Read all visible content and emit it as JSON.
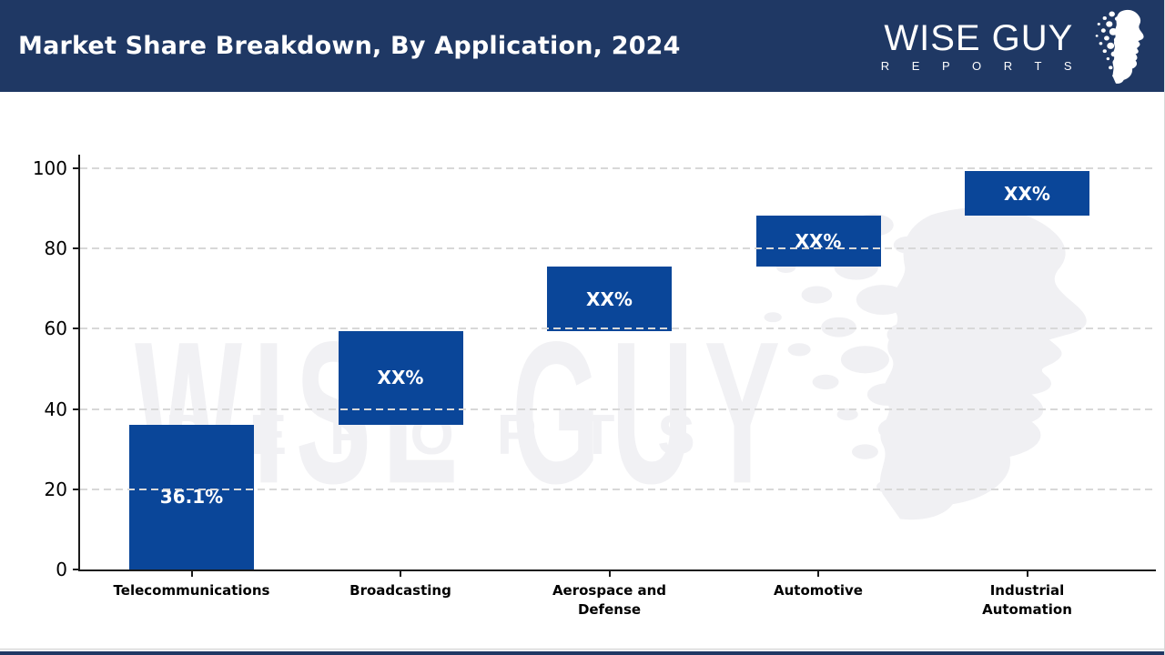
{
  "header": {
    "title": "Market Share Breakdown, By Application, 2024",
    "logo": {
      "line1": "WISE GUY",
      "line2": "R E P O R T S"
    }
  },
  "watermark": {
    "line1": "WISE GUY",
    "line2": "REPORTS"
  },
  "colors": {
    "header_bg": "#1f3864",
    "bar": "#0a4699",
    "gridline": "#d8d8d8",
    "axis": "#1a1a1a",
    "watermark_text": "#f1f1f4",
    "watermark_face": "#f0f0f3",
    "title_text": "#ffffff",
    "footer_bar": "#1f3864"
  },
  "chart_data": {
    "type": "bar",
    "subtype": "waterfall",
    "title": "Market Share Breakdown, By Application, 2024",
    "categories": [
      "Telecommunications",
      "Broadcasting",
      "Aerospace and\nDefense",
      "Automotive",
      "Industrial\nAutomation"
    ],
    "segments": [
      {
        "category": "Telecommunications",
        "start": 0,
        "end": 36.1,
        "value": 36.1,
        "value_label": "36.1%"
      },
      {
        "category": "Broadcasting",
        "start": 36.1,
        "end": 59.5,
        "value": 23.4,
        "value_label": "XX%"
      },
      {
        "category": "Aerospace and Defense",
        "start": 59.5,
        "end": 75.4,
        "value": 15.9,
        "value_label": "XX%"
      },
      {
        "category": "Automotive",
        "start": 75.4,
        "end": 88.1,
        "value": 12.7,
        "value_label": "XX%"
      },
      {
        "category": "Industrial Automation",
        "start": 88.1,
        "end": 99.3,
        "value": 11.2,
        "value_label": "XX%"
      }
    ],
    "yticks": [
      0,
      20,
      40,
      60,
      80,
      100
    ],
    "ylim": [
      0,
      103
    ],
    "xlabel": "",
    "ylabel": "",
    "grid": "horizontal-dashed, drawn above bars",
    "legend": "none"
  }
}
